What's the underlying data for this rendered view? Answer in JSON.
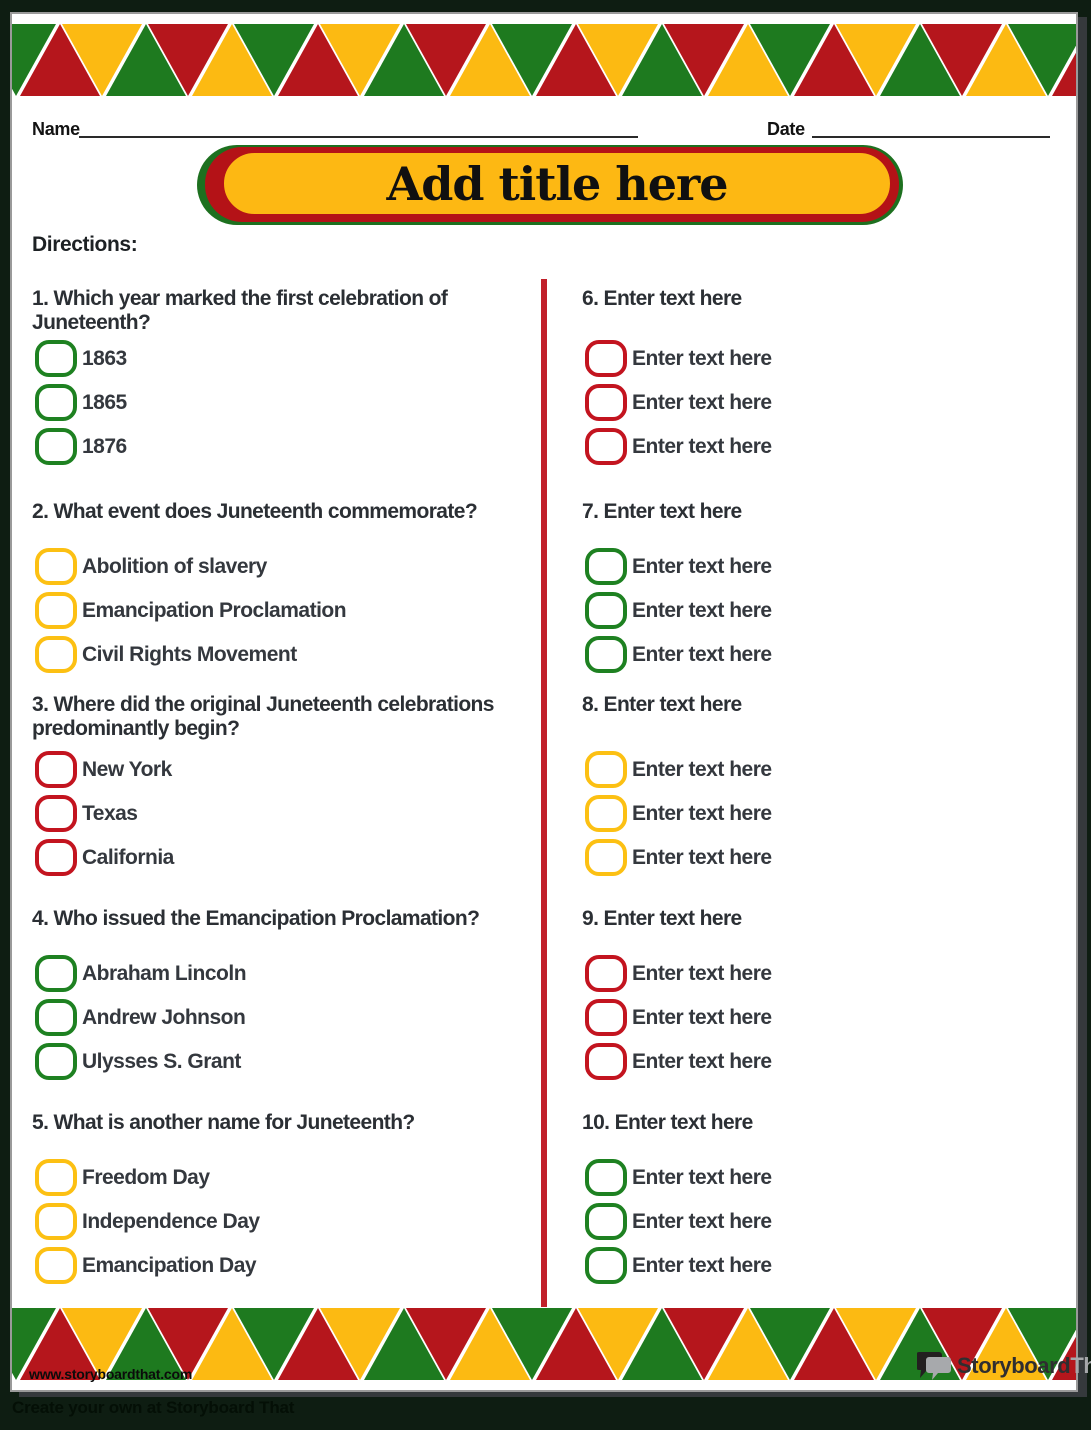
{
  "palette": {
    "tri_green": "#1e7a1f",
    "tri_red": "#b5161c",
    "tri_yellow": "#fcba12",
    "circle_green": "#1e8121",
    "circle_red": "#c3141f",
    "circle_yellow": "#fcc013",
    "divider_red": "#c1202a",
    "frame_bg": "#0e1d12",
    "title_fill": "#fdb813",
    "title_red": "#b41217",
    "title_green": "#1d701f",
    "text_dark": "#34383e"
  },
  "header": {
    "name_label": "Name",
    "date_label": "Date"
  },
  "title": {
    "placeholder": "Add title here"
  },
  "directions": {
    "label": "Directions:"
  },
  "questions": {
    "left": [
      {
        "heading": "1. Which year marked the first celebration of Juneteenth?",
        "circle_color": "green",
        "options": [
          "1863",
          "1865",
          "1876"
        ]
      },
      {
        "heading": "2. What event does Juneteenth commemorate?",
        "circle_color": "yellow",
        "options": [
          "Abolition of slavery",
          "Emancipation Proclamation",
          "Civil Rights Movement"
        ]
      },
      {
        "heading": "3. Where did the original Juneteenth celebrations predominantly begin?",
        "circle_color": "red",
        "options": [
          "New York",
          "Texas",
          "California"
        ]
      },
      {
        "heading": "4. Who issued the Emancipation Proclamation?",
        "circle_color": "green",
        "options": [
          "Abraham Lincoln",
          "Andrew Johnson",
          "Ulysses S. Grant"
        ]
      },
      {
        "heading": "5. What is another name for Juneteenth?",
        "circle_color": "yellow",
        "options": [
          "Freedom Day",
          "Independence Day",
          "Emancipation Day"
        ]
      }
    ],
    "right": [
      {
        "heading": "6. Enter text here",
        "circle_color": "red",
        "options": [
          "Enter text here",
          "Enter text here",
          "Enter text here"
        ]
      },
      {
        "heading": "7. Enter text here",
        "circle_color": "green",
        "options": [
          "Enter text here",
          "Enter text here",
          "Enter text here"
        ]
      },
      {
        "heading": "8. Enter text here",
        "circle_color": "yellow",
        "options": [
          "Enter text here",
          "Enter text here",
          "Enter text here"
        ]
      },
      {
        "heading": "9. Enter text here",
        "circle_color": "red",
        "options": [
          "Enter text here",
          "Enter text here",
          "Enter text here"
        ]
      },
      {
        "heading": "10. Enter text here",
        "circle_color": "green",
        "options": [
          "Enter text here",
          "Enter text here",
          "Enter text here"
        ]
      }
    ]
  },
  "footer": {
    "website": "www.storyboardthat.com",
    "logo": {
      "part1": "Storyboard",
      "part2": "That"
    },
    "tagline": "Create your own at Storyboard That"
  }
}
